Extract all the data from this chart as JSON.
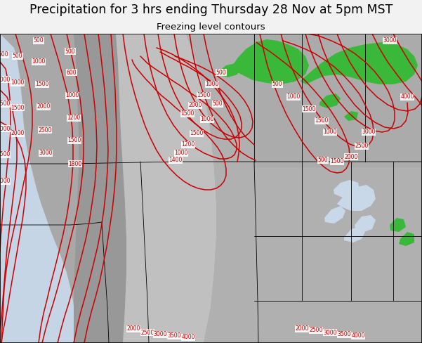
{
  "title": "Precipitation for 3 hrs ending Thursday 28 Nov at 5pm MST",
  "subtitle": "Freezing level contours",
  "title_fontsize": 12.5,
  "subtitle_fontsize": 9.5,
  "fig_width": 6.01,
  "fig_height": 4.88,
  "dpi": 100,
  "title_box_color": "#f2f2f2",
  "ocean_color": "#c5d5e5",
  "land_main_color": "#a8a8a8",
  "land_light_color": "#bcbcbc",
  "land_dark_color": "#909090",
  "land_plain_color": "#b2b2b2",
  "contour_color": "#cc0000",
  "grid_color": "#000000",
  "green_precip": "#3ab83a",
  "lake_color": "#c8d8e8",
  "label_bg": "#ffffff"
}
